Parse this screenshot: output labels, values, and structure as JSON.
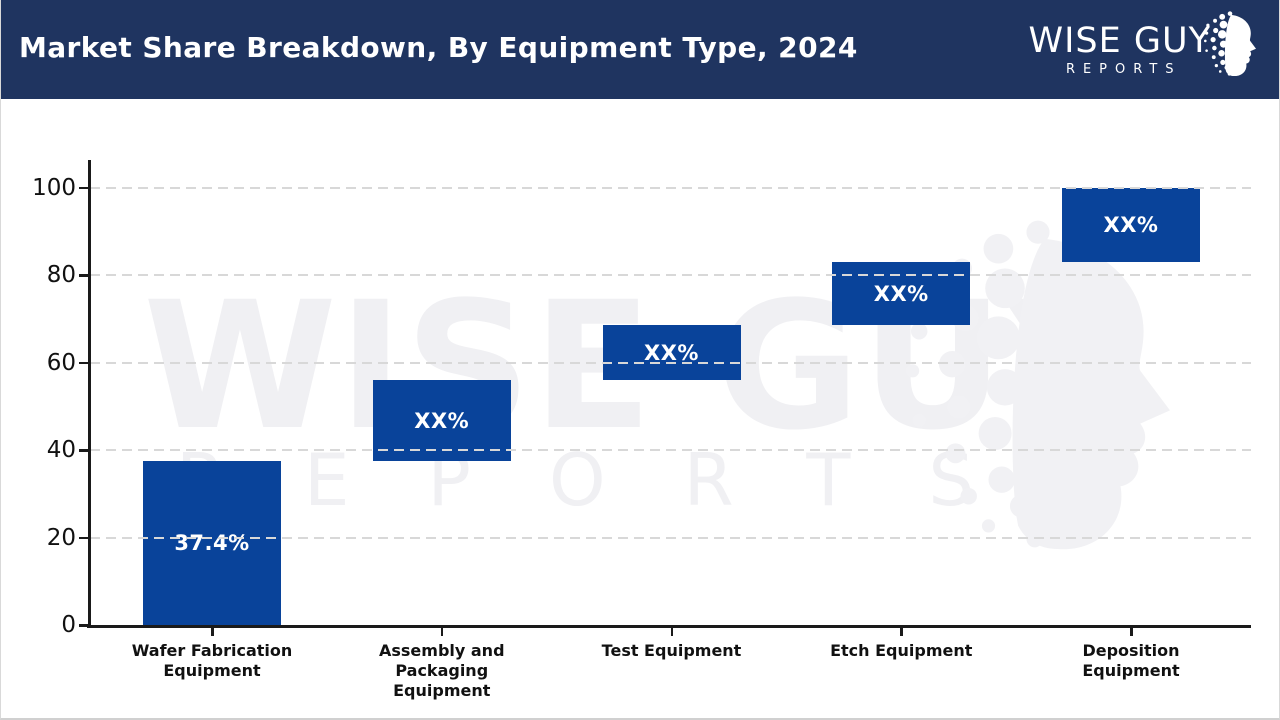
{
  "header": {
    "title": "Market Share Breakdown, By Equipment Type, 2024",
    "bg_color": "#1f3460",
    "logo": {
      "line1": "WISE GUY",
      "line2": "REPORTS"
    }
  },
  "watermark": {
    "line1": "WISE GUY",
    "line2": "REPORTS"
  },
  "chart_data": {
    "type": "bar",
    "subtype": "waterfall",
    "title": "Market Share Breakdown, By Equipment Type, 2024",
    "categories": [
      "Wafer Fabrication\nEquipment",
      "Assembly and\nPackaging\nEquipment",
      "Test Equipment",
      "Etch Equipment",
      "Deposition\nEquipment"
    ],
    "segments": [
      {
        "label": "37.4%",
        "start": 0,
        "end": 37.4
      },
      {
        "label": "XX%",
        "start": 37.4,
        "end": 56
      },
      {
        "label": "XX%",
        "start": 56,
        "end": 68.5
      },
      {
        "label": "XX%",
        "start": 68.5,
        "end": 83
      },
      {
        "label": "XX%",
        "start": 83,
        "end": 100
      }
    ],
    "yticks": [
      0,
      20,
      40,
      60,
      80,
      100
    ],
    "ylim": [
      0,
      106
    ],
    "xlabel": "",
    "ylabel": "",
    "grid": "horizontal-dashed",
    "legend": "none",
    "bar_color": "#09439a",
    "bar_label_color": "#ffffff",
    "gridline_color": "#d8d8d8",
    "axis_color": "#1a1a1a"
  }
}
